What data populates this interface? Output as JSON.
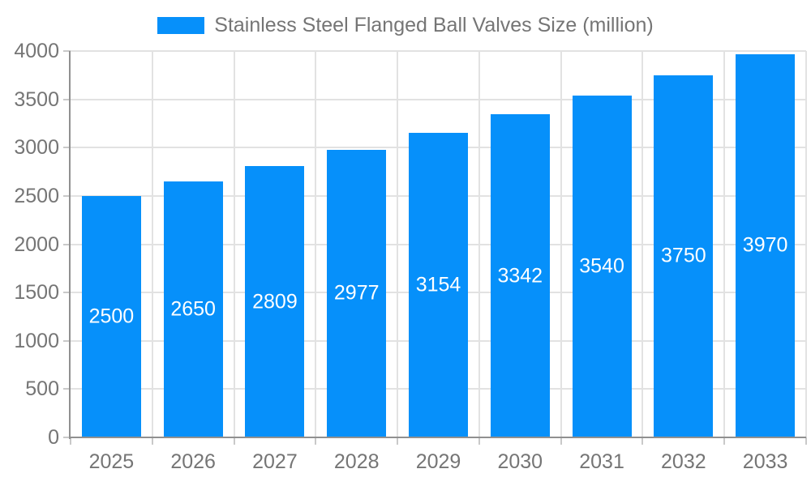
{
  "chart_data": {
    "type": "bar",
    "title": "Stainless Steel Flanged Ball Valves Size (million)",
    "categories": [
      "2025",
      "2026",
      "2027",
      "2028",
      "2029",
      "2030",
      "2031",
      "2032",
      "2033"
    ],
    "values": [
      2500,
      2650,
      2809,
      2977,
      3154,
      3342,
      3540,
      3750,
      3970
    ],
    "xlabel": "",
    "ylabel": "",
    "ylim": [
      0,
      4000
    ],
    "ytick_step": 500,
    "grid": true,
    "legend_position": "top-center",
    "bar_color": "#0690fa",
    "bar_label_color": "#ffffff",
    "axis_text_color": "#757575",
    "gridline_color": "#e2e2e2",
    "tick_color": "#c9c9c9",
    "axis_line_color": "#909090"
  }
}
